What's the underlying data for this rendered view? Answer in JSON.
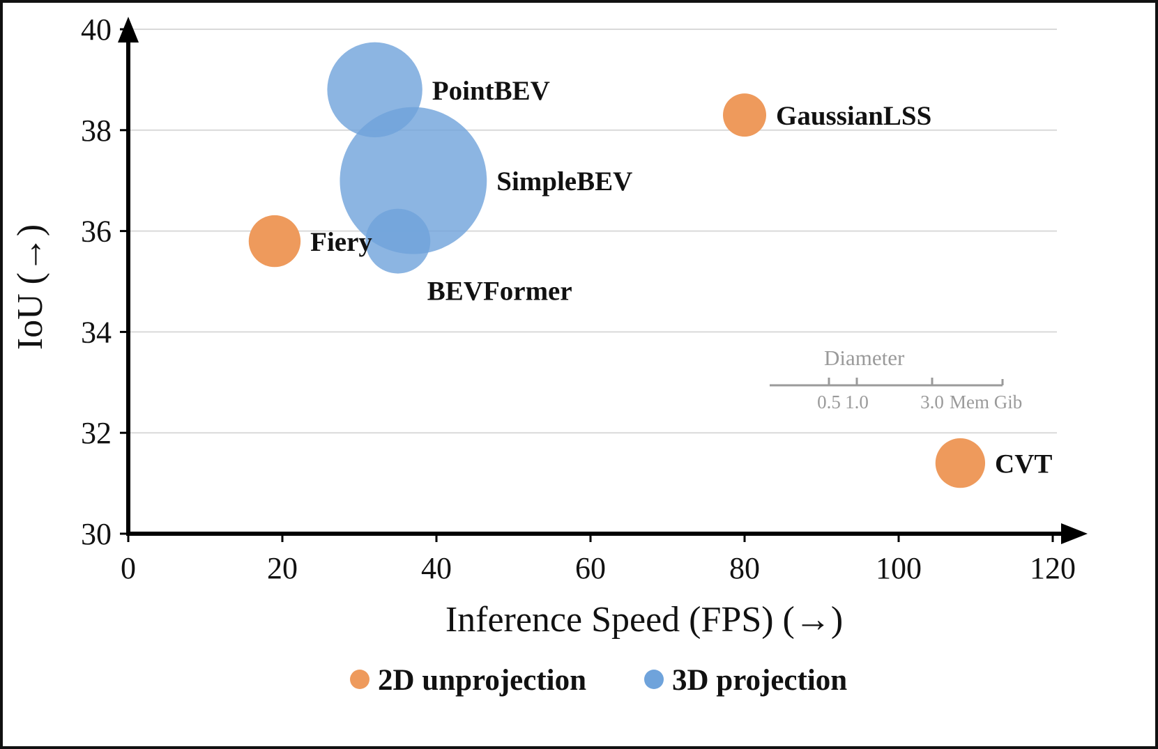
{
  "chart_data": {
    "type": "scatter",
    "subtype": "bubble",
    "title": "",
    "xlabel": "Inference Speed (FPS) (→)",
    "ylabel": "IoU (→)",
    "xlim": [
      0,
      120
    ],
    "xticks": [
      "0",
      "20",
      "40",
      "60",
      "80",
      "100",
      "120"
    ],
    "xtick_values": [
      0,
      20,
      40,
      60,
      80,
      100,
      120
    ],
    "ylim": [
      30,
      40
    ],
    "yticks": [
      "30",
      "32",
      "34",
      "36",
      "38",
      "40"
    ],
    "ytick_values": [
      30,
      32,
      34,
      36,
      38,
      40
    ],
    "grid": "horizontal",
    "gridline_color": "#d9d9d9",
    "legend_position": "bottom",
    "groups": [
      {
        "id": "2d",
        "label": "2D unprojection",
        "color": "#EE9A5C"
      },
      {
        "id": "3d",
        "label": "3D projection",
        "color": "#6FA3DB"
      }
    ],
    "size_encoding": {
      "title": "Diameter",
      "unit": "Mem Gib",
      "legend_ticks": [
        "0.5",
        "1.0",
        "3.0"
      ],
      "color": "#9a9a9a"
    },
    "points": [
      {
        "name": "PointBEV",
        "group": "3d",
        "fps": 32,
        "iou": 38.8,
        "mem_gib": 2.2,
        "label_placement": "right"
      },
      {
        "name": "BEVFormer",
        "group": "3d",
        "fps": 35,
        "iou": 35.8,
        "mem_gib": 1.5,
        "label_placement": "below"
      },
      {
        "name": "SimpleBEV",
        "group": "3d",
        "fps": 37,
        "iou": 37.0,
        "mem_gib": 3.4,
        "label_placement": "right"
      },
      {
        "name": "Fiery",
        "group": "2d",
        "fps": 19,
        "iou": 35.8,
        "mem_gib": 1.2,
        "label_placement": "right"
      },
      {
        "name": "GaussianLSS",
        "group": "2d",
        "fps": 80,
        "iou": 38.3,
        "mem_gib": 1.0,
        "label_placement": "right"
      },
      {
        "name": "CVT",
        "group": "2d",
        "fps": 108,
        "iou": 31.4,
        "mem_gib": 1.15,
        "label_placement": "right"
      }
    ]
  }
}
